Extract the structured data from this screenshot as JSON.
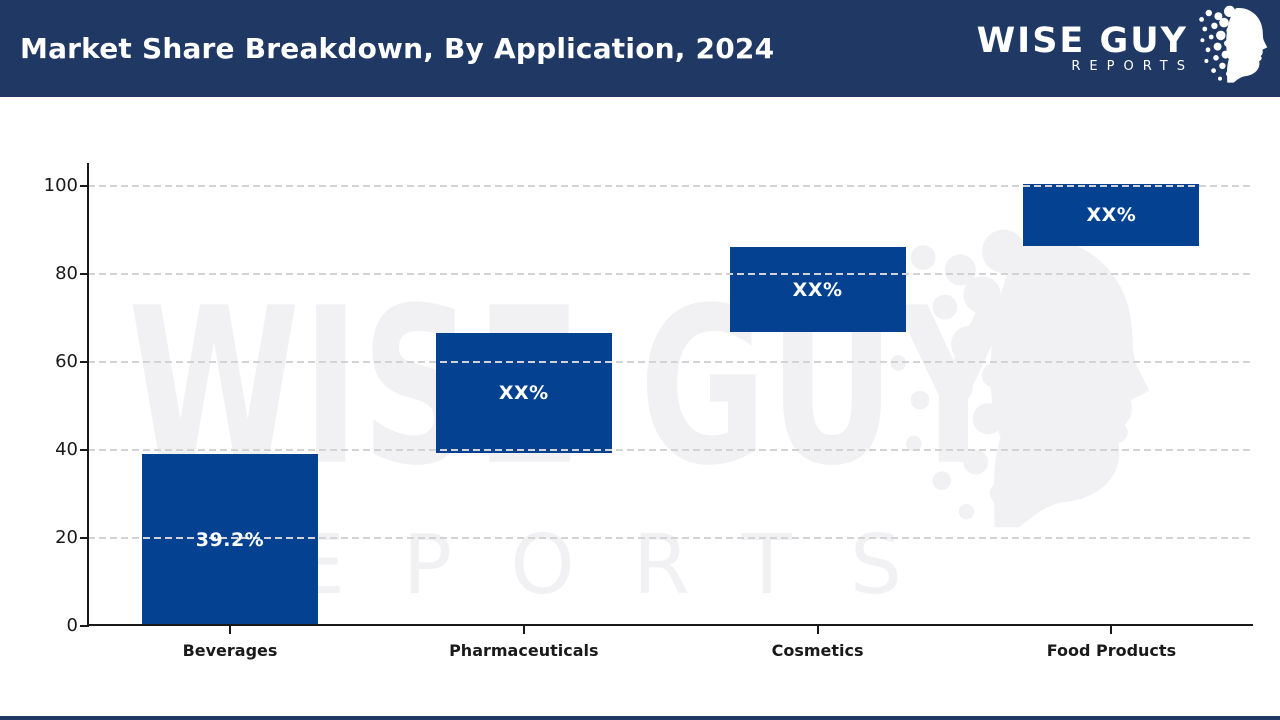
{
  "header": {
    "title": "Market Share Breakdown, By Application, 2024",
    "logo_line1": "WISE GUY",
    "logo_line2": "REPORTS"
  },
  "watermark": {
    "line1": "WISE GUY",
    "line2": "REPORTS"
  },
  "colors": {
    "header_bg": "#1f3864",
    "bar_blue": "#044291",
    "grid_gray": "#d3d3d6",
    "axis_black": "#19191c",
    "bar_label_white": "#ffffff",
    "watermark_gray": "#f1f1f4"
  },
  "chart_data": {
    "type": "bar",
    "subtype": "floating segmented bars (waterfall-style share breakdown)",
    "title": "Market Share Breakdown, By Application, 2024",
    "categories": [
      "Beverages",
      "Pharmaceuticals",
      "Cosmetics",
      "Food Products"
    ],
    "segments": [
      {
        "category": "Beverages",
        "start": 0,
        "end": 39.2,
        "label": "39.2%"
      },
      {
        "category": "Pharmaceuticals",
        "start": 39.2,
        "end": 66.6,
        "label": "XX%"
      },
      {
        "category": "Cosmetics",
        "start": 66.6,
        "end": 86.1,
        "label": "XX%"
      },
      {
        "category": "Food Products",
        "start": 86.1,
        "end": 100.5,
        "label": "XX%"
      }
    ],
    "ylim": [
      0,
      105
    ],
    "yticks": [
      0,
      20,
      40,
      60,
      80,
      100
    ],
    "xlabel": "",
    "ylabel": "",
    "grid": "horizontal dashed lines drawn above bars",
    "legend": "none",
    "bar_color": "#044291"
  }
}
